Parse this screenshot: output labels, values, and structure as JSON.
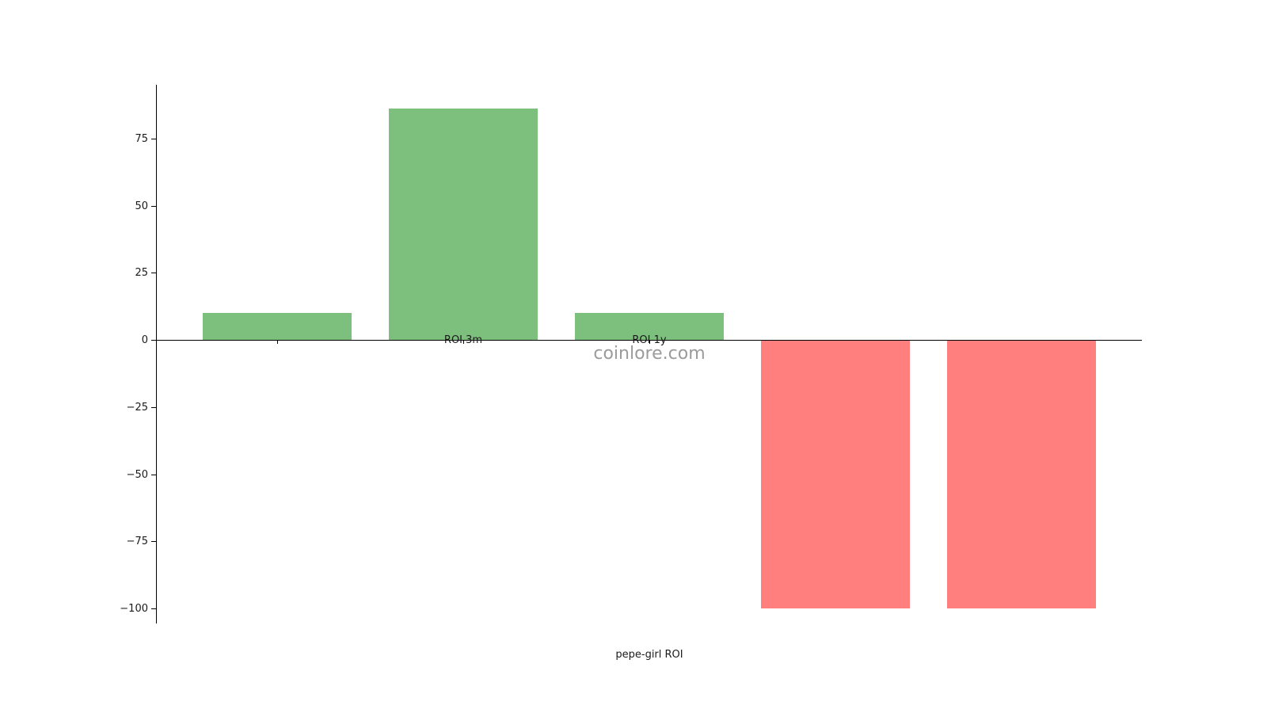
{
  "watermark": "coinlore.com",
  "chart_data": {
    "type": "bar",
    "categories": [
      "",
      "ROI 3m",
      "ROI 1y",
      "",
      ""
    ],
    "values": [
      10,
      86,
      10,
      -100,
      -100
    ],
    "title": "",
    "xlabel": "pepe-girl ROI",
    "ylabel": "",
    "ylim": [
      -105,
      96
    ],
    "yticks": [
      75,
      50,
      25,
      0,
      -25,
      -50,
      -75,
      -100
    ],
    "grid": false,
    "legend": "none",
    "positive_color": "#7dbf7d",
    "negative_color": "#ff7f7f",
    "axis_color": "#000000",
    "tick_label_color": "#1a1a1a",
    "watermark_color": "#9b9b9b"
  }
}
